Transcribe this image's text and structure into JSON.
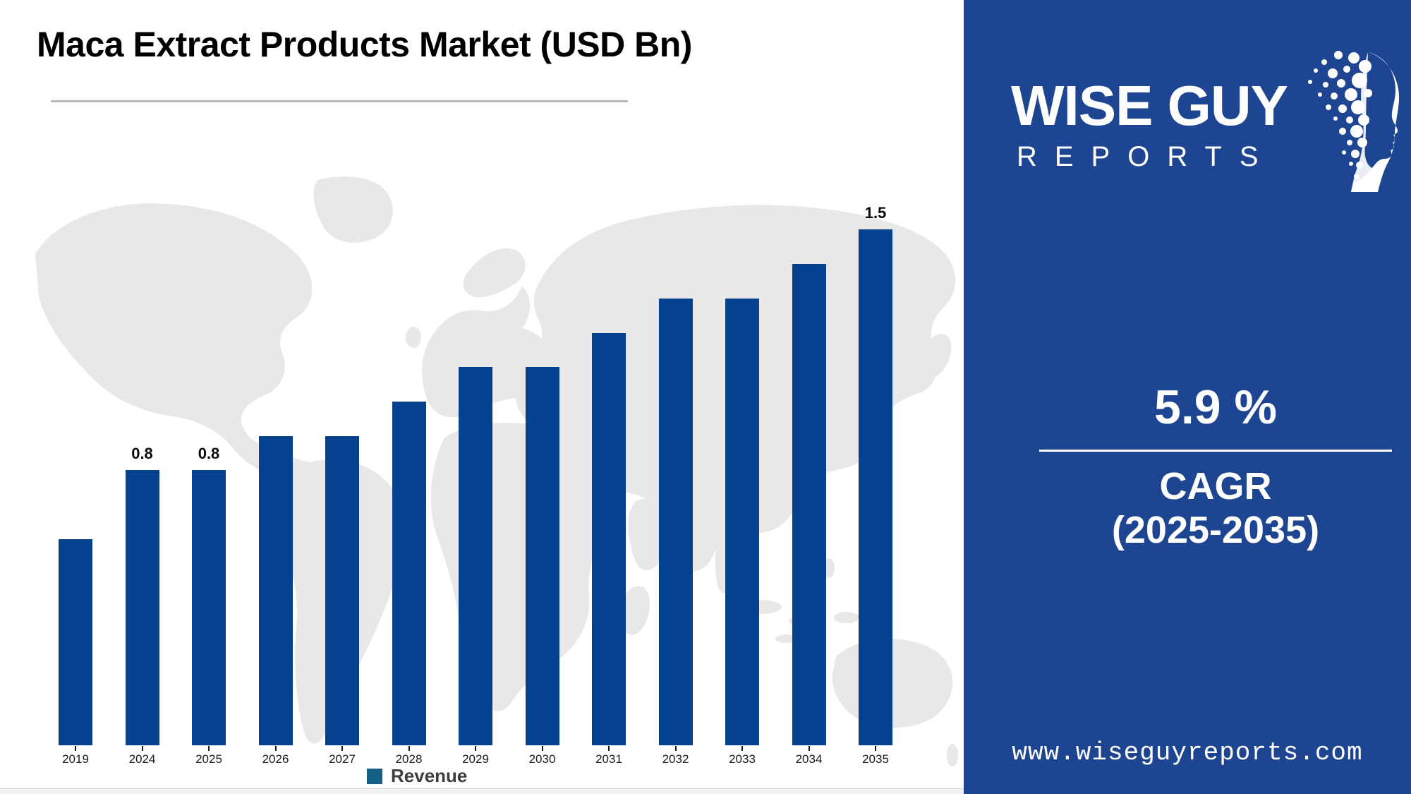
{
  "header": {
    "title": "Maca Extract Products Market (USD Bn)"
  },
  "chart_data": {
    "type": "bar",
    "title": "Maca Extract Products Market (USD Bn)",
    "unit": "USD Bn",
    "categories": [
      "2019",
      "2024",
      "2025",
      "2026",
      "2027",
      "2028",
      "2029",
      "2030",
      "2031",
      "2032",
      "2033",
      "2034",
      "2035"
    ],
    "values": [
      0.6,
      0.8,
      0.8,
      0.9,
      0.9,
      1.0,
      1.1,
      1.1,
      1.2,
      1.3,
      1.3,
      1.4,
      1.5
    ],
    "visible_bar_labels": {
      "2024": "0.8",
      "2025": "0.8",
      "2035": "1.5"
    },
    "legend": [
      {
        "label": "Revenue",
        "color": "#146087"
      }
    ],
    "bar_color": "#04428f",
    "ylim": [
      0,
      1.6
    ],
    "grid": false,
    "legend_position": "bottom-center",
    "x_axis": "Year"
  },
  "sidebar": {
    "logo_line1": "WISE GUY",
    "logo_line2": "REPORTS",
    "stat_value": "5.9 %",
    "stat_label_line1": "CAGR",
    "stat_label_line2": "(2025-2035)",
    "website": "www.wiseguyreports.com",
    "background_color": "#1e4591"
  }
}
